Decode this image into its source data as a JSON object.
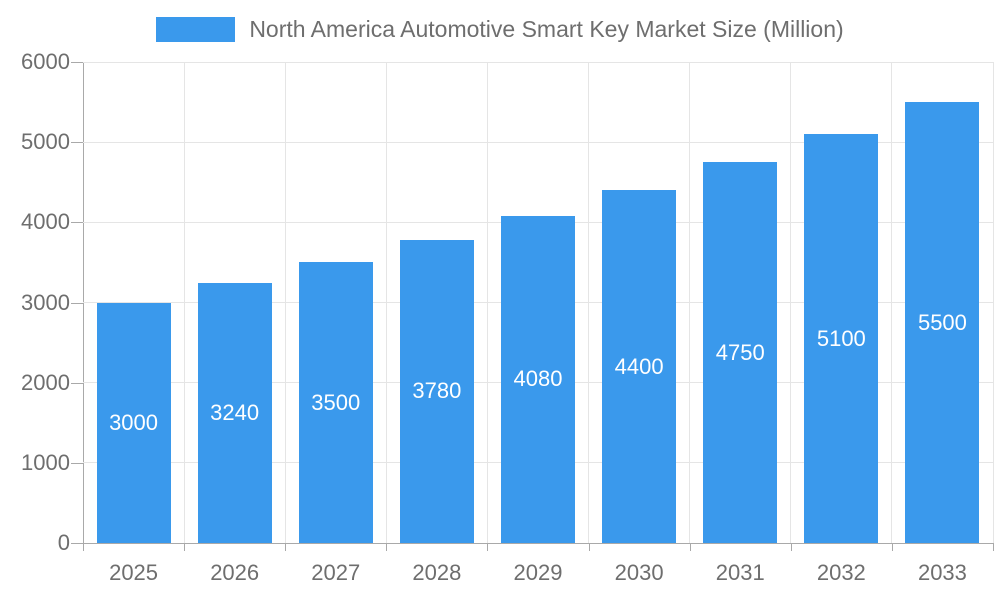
{
  "chart_data": {
    "type": "bar",
    "title": "North America Automotive Smart Key Market Size (Million)",
    "categories": [
      "2025",
      "2026",
      "2027",
      "2028",
      "2029",
      "2030",
      "2031",
      "2032",
      "2033"
    ],
    "series": [
      {
        "name": "North America Automotive Smart Key Market Size (Million)",
        "values": [
          3000,
          3240,
          3500,
          3780,
          4080,
          4400,
          4750,
          5100,
          5500
        ]
      }
    ],
    "xlabel": "",
    "ylabel": "",
    "ylim": [
      0,
      6000
    ],
    "y_ticks": [
      0,
      1000,
      2000,
      3000,
      4000,
      5000,
      6000
    ],
    "grid": true,
    "legend_position": "top",
    "bar_labels_visible": true
  },
  "colors": {
    "bar": "#3a99ec",
    "bar_label_text": "#ffffff",
    "axis_text": "#6e6e6e",
    "legend_text": "#6e6e6e",
    "grid_line": "#e5e5e5",
    "axis_line": "#a9a9a9",
    "background": "#ffffff"
  },
  "legend": {
    "label": "North America Automotive Smart Key Market Size (Million)"
  }
}
